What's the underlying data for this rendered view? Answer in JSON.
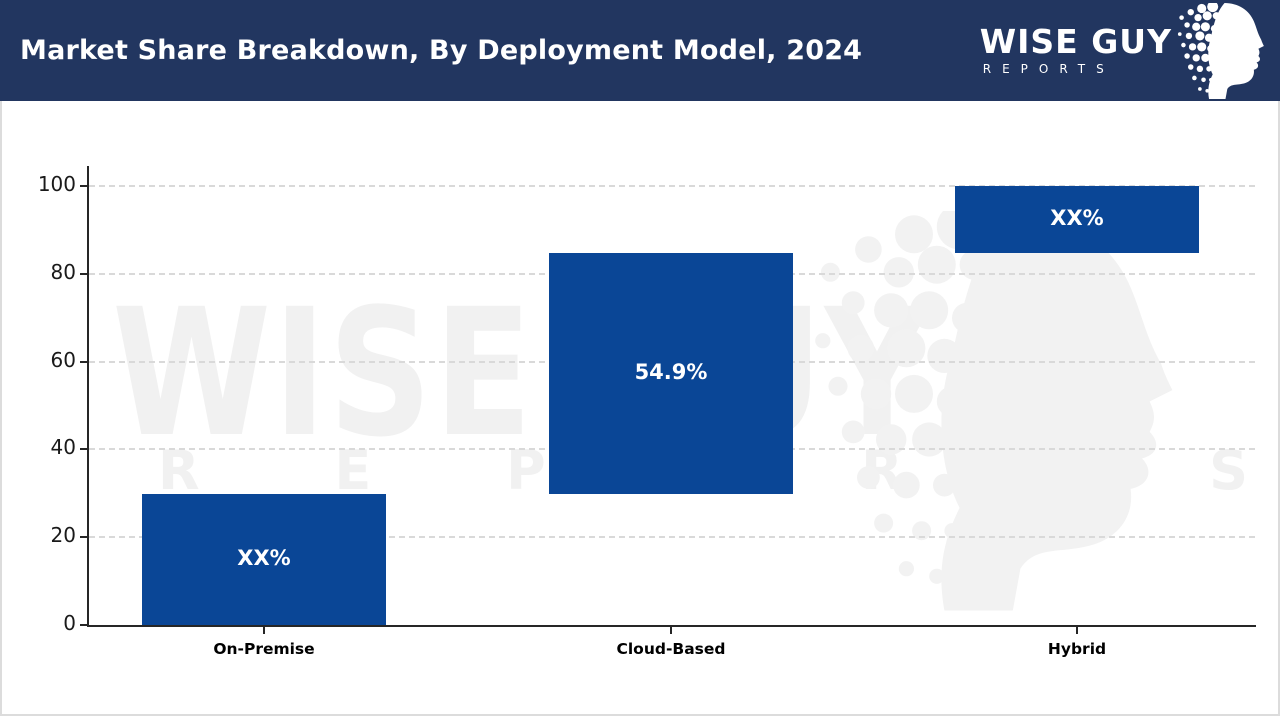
{
  "header": {
    "title": "Market Share Breakdown, By Deployment Model, 2024",
    "brand": {
      "name_top": "WISE GUY",
      "name_bottom": "REPORTS"
    }
  },
  "watermark": {
    "big_text": "WISE GUY",
    "small_text": "R E P O R T S"
  },
  "colors": {
    "header_bg": "#223660",
    "bar_fill": "#0a4696",
    "axis": "#262626",
    "gridline": "#d9d9d9",
    "bar_label_text": "#ffffff",
    "title_text": "#ffffff",
    "watermark": "#f1f1f1",
    "edge_border": "#dcdcdc"
  },
  "chart_data": {
    "type": "bar",
    "subtype": "floating stacked share segments",
    "title": "Market Share Breakdown, By Deployment Model, 2024",
    "categories": [
      "On-Premise",
      "Cloud-Based",
      "Hybrid"
    ],
    "segments": [
      {
        "category": "On-Premise",
        "start": 0,
        "end": 29.8,
        "value_label": "XX%",
        "value_estimate": 29.8
      },
      {
        "category": "Cloud-Based",
        "start": 29.8,
        "end": 84.7,
        "value_label": "54.9%",
        "value_estimate": 54.9
      },
      {
        "category": "Hybrid",
        "start": 84.7,
        "end": 100,
        "value_label": "XX%",
        "value_estimate": 15.3
      }
    ],
    "xlabel": "",
    "ylabel": "",
    "ylim": [
      0,
      103.6
    ],
    "yticks": [
      0,
      20,
      40,
      60,
      80,
      100
    ],
    "grid": "horizontal dashed at yticks",
    "legend": "none"
  }
}
